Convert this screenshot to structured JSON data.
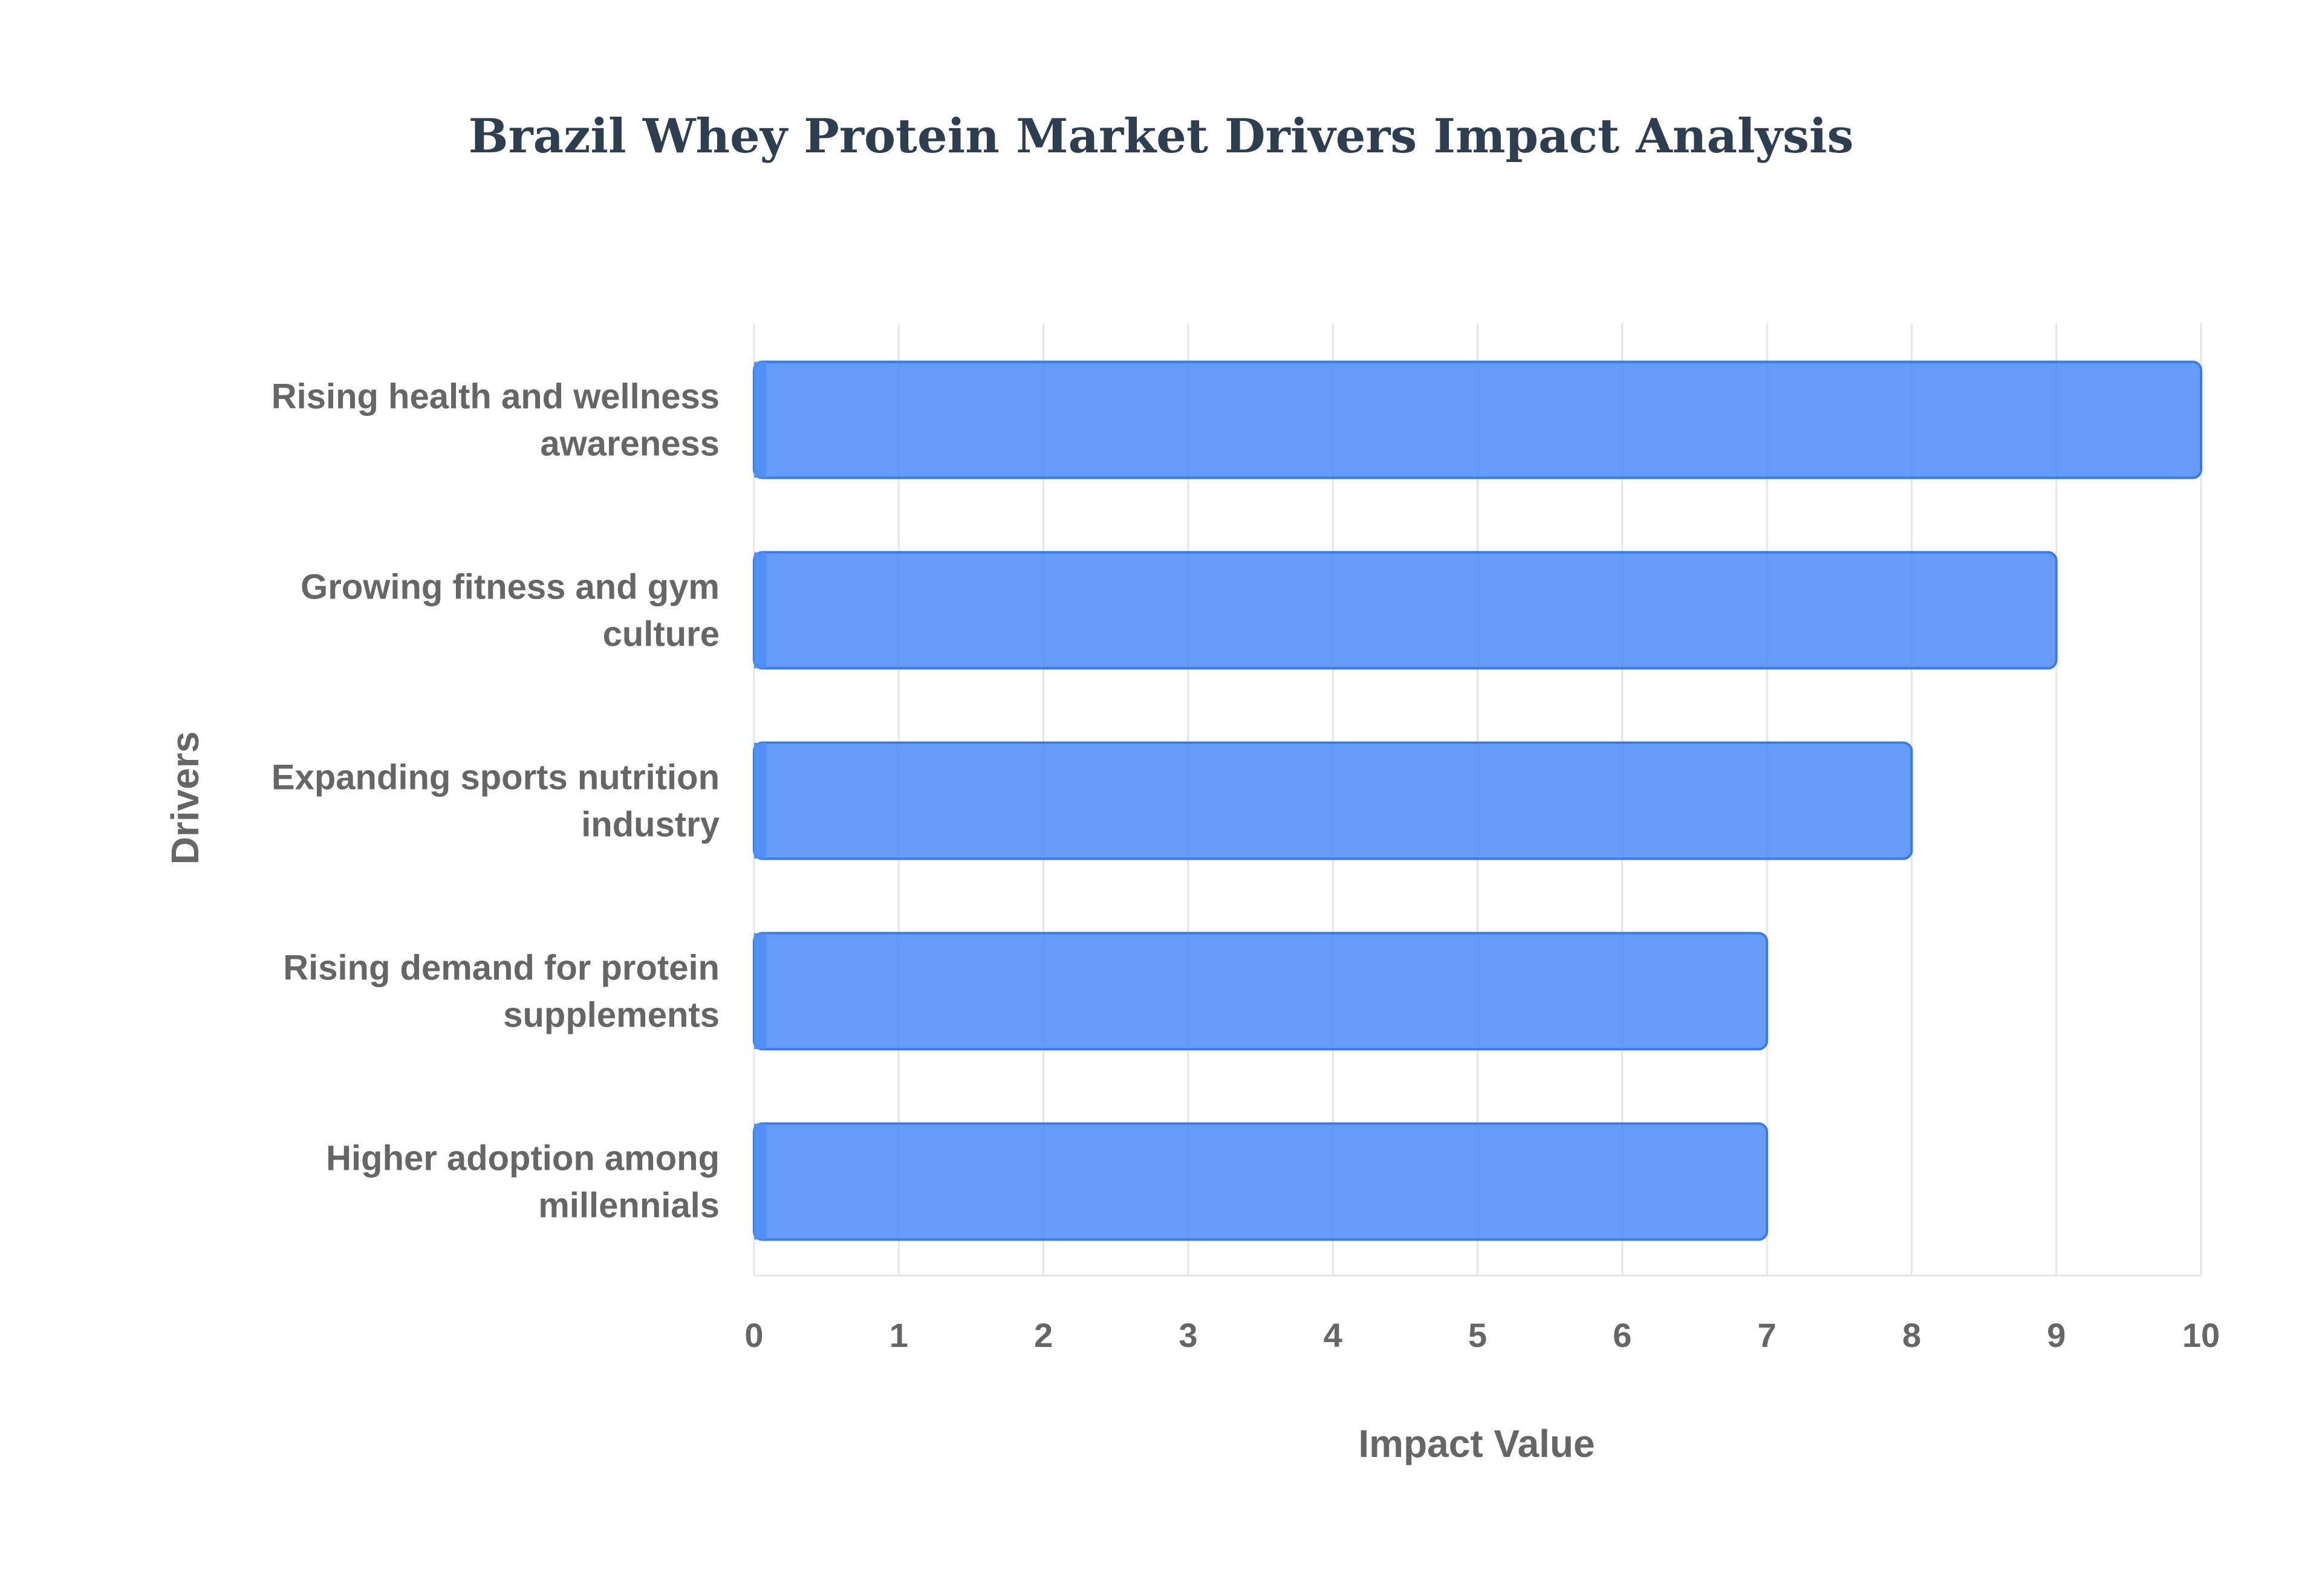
{
  "chart_data": {
    "type": "bar",
    "orientation": "horizontal",
    "title": "Brazil Whey Protein Market Drivers Impact Analysis",
    "xlabel": "Impact Value",
    "ylabel": "Drivers",
    "xlim": [
      0,
      10
    ],
    "grid": true,
    "categories": [
      [
        "Rising health and wellness",
        "awareness"
      ],
      [
        "Growing fitness and gym",
        "culture"
      ],
      [
        "Expanding sports nutrition",
        "industry"
      ],
      [
        "Rising demand for protein",
        "supplements"
      ],
      [
        "Higher adoption among",
        "millennials"
      ]
    ],
    "values": [
      10,
      9,
      8,
      7,
      7
    ],
    "x_ticks": [
      "0",
      "1",
      "2",
      "3",
      "4",
      "5",
      "6",
      "7",
      "8",
      "9",
      "10"
    ],
    "colors": {
      "bar_fill": "#4f8ef7",
      "bar_border": "#3b7be8",
      "title": "#2c3e50",
      "text": "#666666",
      "grid": "#e6e6e6"
    }
  }
}
